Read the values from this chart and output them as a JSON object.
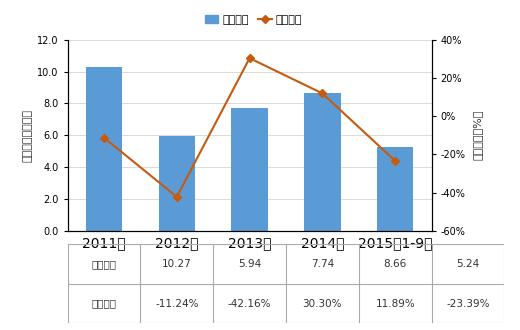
{
  "categories": [
    "2011年",
    "2012年",
    "2013年",
    "2014年",
    "2015年1-9月"
  ],
  "bar_values": [
    10.27,
    5.94,
    7.74,
    8.66,
    5.24
  ],
  "line_values": [
    -11.24,
    -42.16,
    30.3,
    11.89,
    -23.39
  ],
  "bar_color": "#5B9BD5",
  "line_color": "#C55A11",
  "marker_color": "#C55A11",
  "left_ylabel": "出口数量（万吨）",
  "right_ylabel": "同比增长（%）",
  "ylim_left": [
    0,
    12.0
  ],
  "ylim_right": [
    -60,
    40
  ],
  "yticks_left": [
    0.0,
    2.0,
    4.0,
    6.0,
    8.0,
    10.0,
    12.0
  ],
  "yticks_right": [
    -60,
    -40,
    -20,
    0,
    20,
    40
  ],
  "ytick_labels_right": [
    "-60%",
    "-40%",
    "-20%",
    "0%",
    "20%",
    "40%"
  ],
  "legend_bar_label": "出口数量",
  "legend_line_label": "同比增长",
  "table_row1_label": "出口数量",
  "table_row2_label": "同比增长",
  "table_row1_values": [
    "10.27",
    "5.94",
    "7.74",
    "8.66",
    "5.24"
  ],
  "table_row2_values": [
    "-11.24%",
    "-42.16%",
    "30.30%",
    "11.89%",
    "-23.39%"
  ],
  "background_color": "#FFFFFF",
  "grid_color": "#CCCCCC"
}
